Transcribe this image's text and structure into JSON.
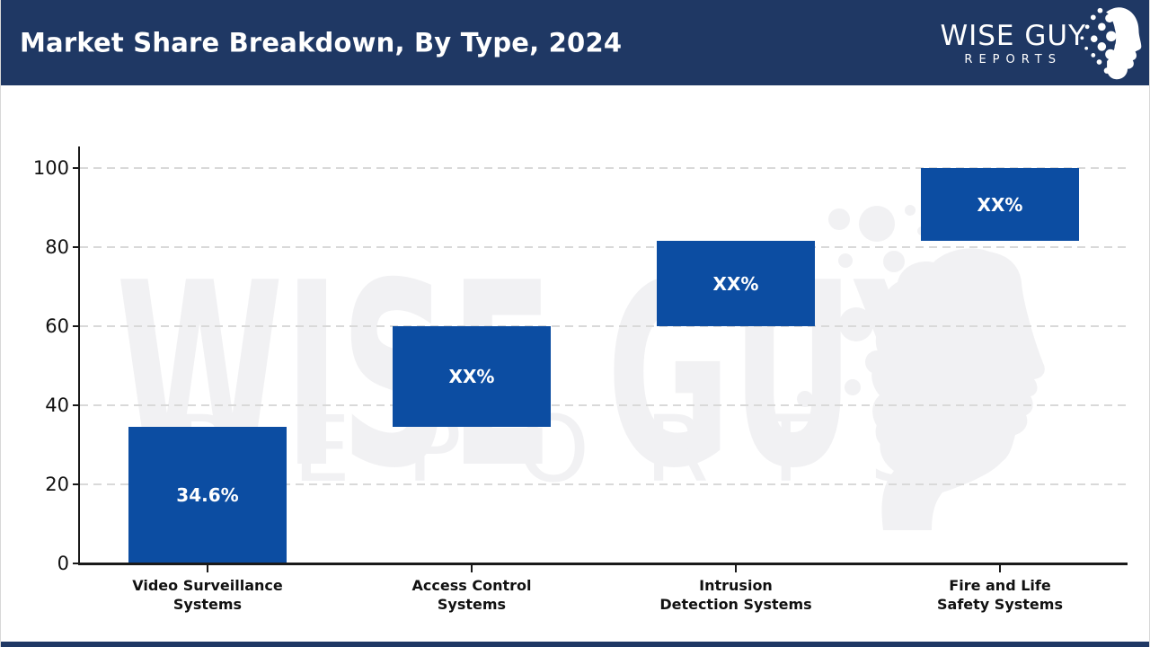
{
  "header": {
    "title": "Market Share Breakdown, By Type, 2024",
    "logo": {
      "line1": "WISE GUY",
      "line2": "REPORTS"
    }
  },
  "watermark": {
    "line1": "WISE GUY",
    "line2": "REPORTS"
  },
  "colors": {
    "header_bg": "#1F3864",
    "bar": "#0C4DA2",
    "grid": "#d9d9d9",
    "axis": "#1a1a1a",
    "watermark": "#f1f1f3"
  },
  "chart_data": {
    "type": "bar",
    "subtype": "waterfall-stacked-breakdown",
    "title": "Market Share Breakdown, By Type, 2024",
    "xlabel": "",
    "ylabel": "",
    "ylim": [
      0,
      100
    ],
    "yticks": [
      0,
      20,
      40,
      60,
      80,
      100
    ],
    "grid": "horizontal-dashed",
    "legend": "none",
    "categories": [
      "Video Surveillance Systems",
      "Access Control Systems",
      "Intrusion Detection Systems",
      "Fire and Life Safety Systems"
    ],
    "category_lines": [
      [
        "Video Surveillance",
        "Systems"
      ],
      [
        "Access Control",
        "Systems"
      ],
      [
        "Intrusion",
        "Detection Systems"
      ],
      [
        "Fire and Life",
        "Safety Systems"
      ]
    ],
    "segments": [
      {
        "label": "34.6%",
        "start": 0,
        "end": 34.6,
        "size": 34.6
      },
      {
        "label": "XX%",
        "start": 34.6,
        "end": 60,
        "size": 25.4
      },
      {
        "label": "XX%",
        "start": 60,
        "end": 81.5,
        "size": 21.5
      },
      {
        "label": "XX%",
        "start": 81.5,
        "end": 100,
        "size": 18.5
      }
    ]
  }
}
